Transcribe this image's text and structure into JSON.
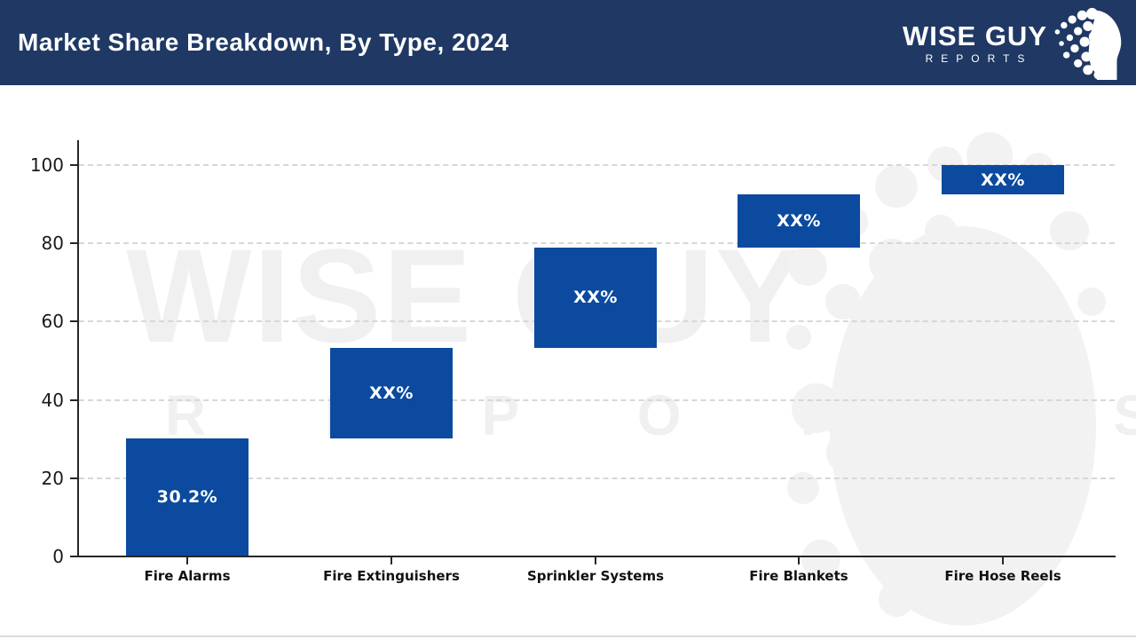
{
  "header": {
    "title": "Market Share Breakdown, By Type, 2024",
    "bg_color": "#1f3864",
    "logo": {
      "line1": "WISE GUY",
      "line2": "REPORTS"
    }
  },
  "watermark": {
    "line1": "WISE GUY",
    "line2": "R E P O R T S"
  },
  "chart_data": {
    "type": "bar",
    "subtype": "waterfall",
    "title": "Market Share Breakdown, By Type, 2024",
    "categories": [
      "Fire Alarms",
      "Fire Extinguishers",
      "Sprinkler Systems",
      "Fire Blankets",
      "Fire Hose Reels"
    ],
    "segments": [
      {
        "category": "Fire Alarms",
        "start": 0,
        "end": 30.2,
        "label": "30.2%"
      },
      {
        "category": "Fire Extinguishers",
        "start": 30.2,
        "end": 53.3,
        "label": "XX%"
      },
      {
        "category": "Sprinkler Systems",
        "start": 53.3,
        "end": 79.0,
        "label": "XX%"
      },
      {
        "category": "Fire Blankets",
        "start": 79.0,
        "end": 92.5,
        "label": "XX%"
      },
      {
        "category": "Fire Hose Reels",
        "start": 92.5,
        "end": 100.0,
        "label": "XX%"
      }
    ],
    "yticks": [
      0,
      20,
      40,
      60,
      80,
      100
    ],
    "ylim": [
      0,
      106
    ],
    "xlabel": "",
    "ylabel": "",
    "grid": "horizontal-dashed",
    "legend": "none",
    "bar_color": "#0b4a9e",
    "bar_label_color": "#ffffff",
    "gridline_color": "#d7d7d7",
    "axis_color": "#262626"
  }
}
